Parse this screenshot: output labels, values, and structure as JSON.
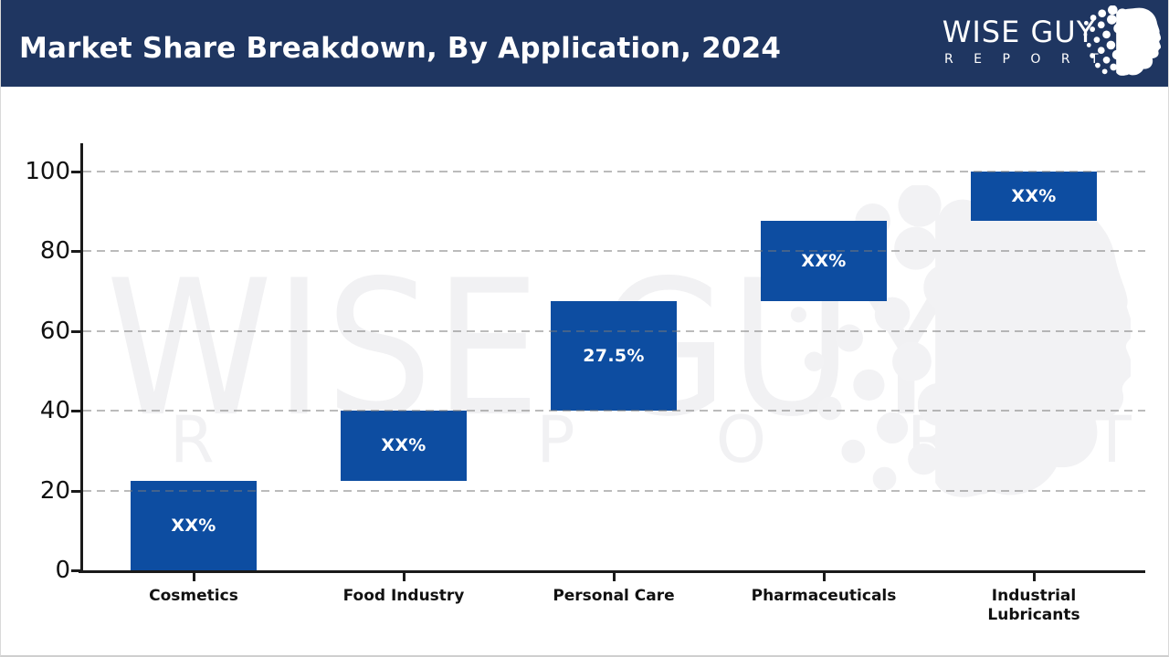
{
  "header": {
    "title": "Market Share Breakdown, By Application, 2024",
    "bg_color": "#1f3661",
    "logo": {
      "line1": "WISE GUY",
      "line2": "R E P O R T S"
    }
  },
  "watermark": {
    "line1": "WISE GUY",
    "line2": "R E P O R T S"
  },
  "chart_data": {
    "type": "bar",
    "subtype": "floating-waterfall-bars",
    "title": "Market Share Breakdown, By Application, 2024",
    "xlabel": "",
    "ylabel": "",
    "categories": [
      "Cosmetics",
      "Food Industry",
      "Personal Care",
      "Pharmaceuticals",
      "Industrial Lubricants"
    ],
    "segments": [
      {
        "category": "Cosmetics",
        "start": 0,
        "end": 22.5,
        "label": "XX%"
      },
      {
        "category": "Food Industry",
        "start": 22.5,
        "end": 40,
        "label": "XX%"
      },
      {
        "category": "Personal Care",
        "start": 40,
        "end": 67.5,
        "label": "27.5%"
      },
      {
        "category": "Pharmaceuticals",
        "start": 67.5,
        "end": 87.5,
        "label": "XX%"
      },
      {
        "category": "Industrial Lubricants",
        "start": 87.5,
        "end": 100,
        "label": "XX%"
      }
    ],
    "y_ticks": [
      0,
      20,
      40,
      60,
      80,
      100
    ],
    "ylim": [
      0,
      105
    ],
    "bar_color": "#0d4da1",
    "grid": "horizontal dashed gray, drawn over bars",
    "legend": "none"
  }
}
